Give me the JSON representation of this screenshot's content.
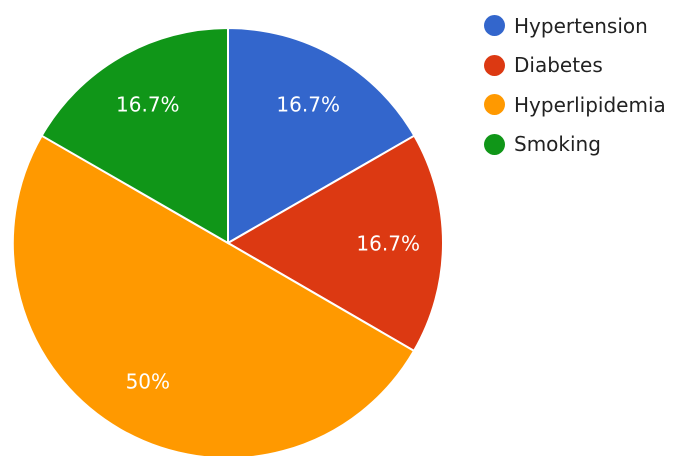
{
  "chart_data": {
    "type": "pie",
    "title": "",
    "categories": [
      "Hypertension",
      "Diabetes",
      "Hyperlipidemia",
      "Smoking"
    ],
    "values": [
      16.7,
      16.7,
      50,
      16.7
    ],
    "labels": [
      "16.7%",
      "16.7%",
      "50%",
      "16.7%"
    ],
    "colors": [
      "#3366cc",
      "#dc3912",
      "#ff9900",
      "#109618"
    ],
    "start_angle": "12 o'clock",
    "direction": "clockwise",
    "legend": {
      "position": "right",
      "entries": [
        "Hypertension",
        "Diabetes",
        "Hyperlipidemia",
        "Smoking"
      ]
    }
  }
}
